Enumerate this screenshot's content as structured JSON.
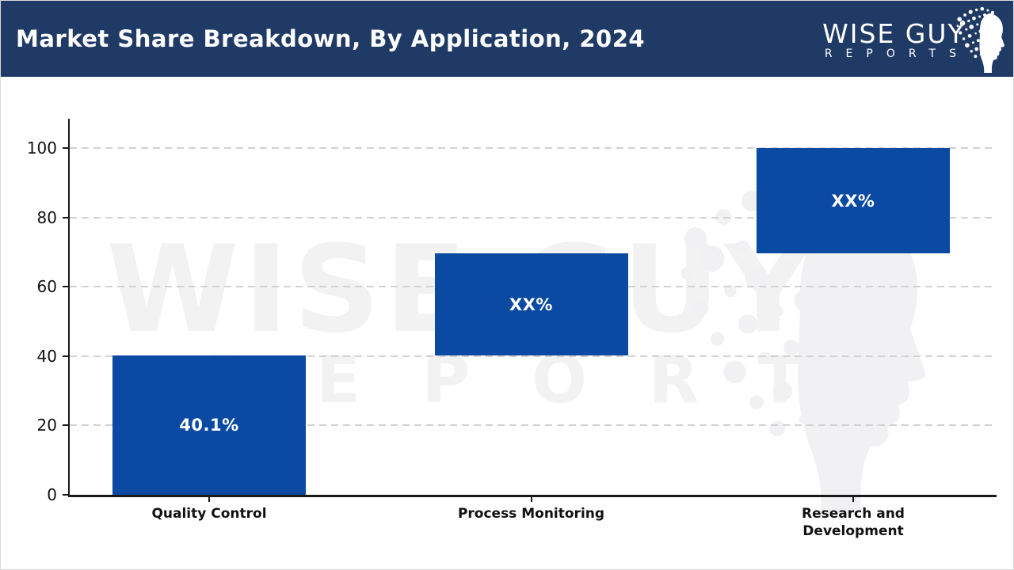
{
  "header": {
    "title": "Market Share Breakdown, By Application, 2024",
    "brand": {
      "line1": "WISE GUY",
      "line2": "REPORTS"
    }
  },
  "watermark": {
    "line1": "WISE GUY",
    "line2": "REPORTS"
  },
  "colors": {
    "header_bg": "#203a66",
    "bar": "#0b4aa2",
    "bar_label": "#ffffff",
    "grid": "#d2d2d2",
    "axis": "#1a1a1a",
    "tick_label": "#111111",
    "watermark": "#f2f2f3",
    "title_text": "#ffffff"
  },
  "chart_data": {
    "type": "bar",
    "subtype": "floating-segment-waterfall",
    "title": "Market Share Breakdown, By Application, 2024",
    "categories": [
      "Quality Control",
      "Process Monitoring",
      "Research and Development"
    ],
    "segments": [
      {
        "category": "Quality Control",
        "start": 0,
        "end": 40.1,
        "label": "40.1%"
      },
      {
        "category": "Process Monitoring",
        "start": 40.1,
        "end": 69.6,
        "label": "XX%"
      },
      {
        "category": "Research and Development",
        "start": 69.6,
        "end": 100,
        "label": "XX%"
      }
    ],
    "xlabel": "",
    "ylabel": "",
    "yticks": [
      0,
      20,
      40,
      60,
      80,
      100
    ],
    "ylim": [
      0,
      108
    ],
    "grid": "dashed-horizontal",
    "legend": "none"
  }
}
